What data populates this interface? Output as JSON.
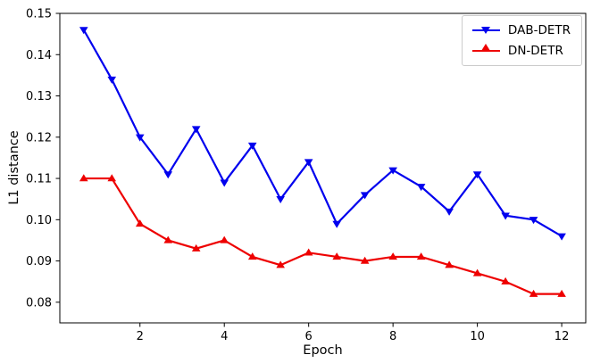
{
  "figure": {
    "background": "#ffffff",
    "frame_color": "#000000",
    "tick_label_color": "#000000"
  },
  "chart_data": {
    "type": "line",
    "title": "",
    "xlabel": "Epoch",
    "ylabel": "L1 distance",
    "grid": false,
    "legend_position": "upper right",
    "xlim": [
      0.1,
      12.57
    ],
    "ylim": [
      0.075,
      0.15
    ],
    "x_tick_values": [
      2,
      4,
      6,
      8,
      10,
      12
    ],
    "x_tick_labels": [
      "2",
      "4",
      "6",
      "8",
      "10",
      "12"
    ],
    "y_tick_values": [
      0.08,
      0.09,
      0.1,
      0.11,
      0.12,
      0.13,
      0.14,
      0.15
    ],
    "y_tick_labels": [
      "0.08",
      "0.09",
      "0.10",
      "0.11",
      "0.12",
      "0.13",
      "0.14",
      "0.15"
    ],
    "x": [
      0.667,
      1.333,
      2,
      2.667,
      3.333,
      4,
      4.667,
      5.333,
      6,
      6.667,
      7.333,
      8,
      8.667,
      9.333,
      10,
      10.667,
      11.333,
      12
    ],
    "series": [
      {
        "name": "DAB-DETR",
        "color": "#0000ee",
        "marker": "triangle-down",
        "values": [
          0.146,
          0.134,
          0.12,
          0.111,
          0.122,
          0.109,
          0.118,
          0.105,
          0.114,
          0.099,
          0.106,
          0.112,
          0.108,
          0.102,
          0.111,
          0.101,
          0.1,
          0.096
        ]
      },
      {
        "name": "DN-DETR",
        "color": "#ee0000",
        "marker": "triangle-up",
        "values": [
          0.11,
          0.11,
          0.099,
          0.095,
          0.093,
          0.095,
          0.091,
          0.089,
          0.092,
          0.091,
          0.09,
          0.091,
          0.091,
          0.089,
          0.087,
          0.085,
          0.082,
          0.082
        ]
      }
    ]
  },
  "legend": {
    "entries": [
      {
        "label": "DAB-DETR",
        "color": "#0000ee",
        "marker": "triangle-down"
      },
      {
        "label": "DN-DETR",
        "color": "#ee0000",
        "marker": "triangle-up"
      }
    ]
  }
}
